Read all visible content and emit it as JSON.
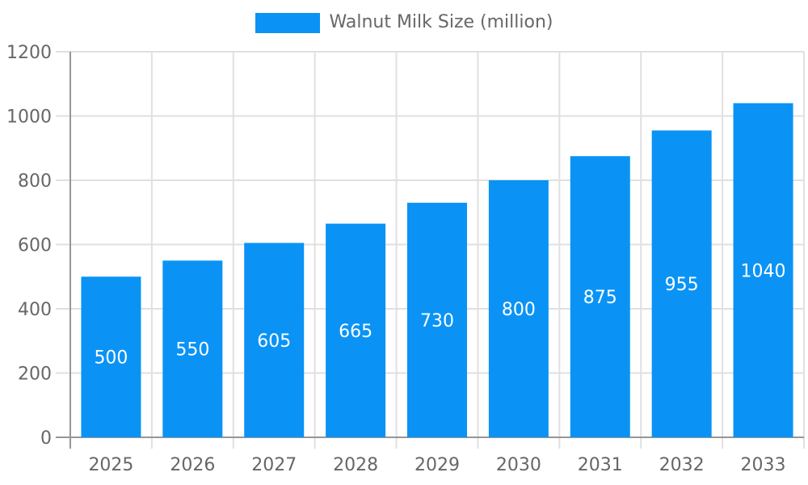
{
  "chart_data": {
    "type": "bar",
    "title": "Walnut Milk Size (million)",
    "categories": [
      "2025",
      "2026",
      "2027",
      "2028",
      "2029",
      "2030",
      "2031",
      "2032",
      "2033"
    ],
    "series": [
      {
        "name": "Walnut Milk Size (million)",
        "values": [
          500,
          550,
          605,
          665,
          730,
          800,
          875,
          955,
          1040
        ]
      }
    ],
    "xlabel": "",
    "ylabel": "",
    "ylim": [
      0,
      1200
    ],
    "yticks": [
      0,
      200,
      400,
      600,
      800,
      1000,
      1200
    ],
    "grid": true,
    "legend_position": "top",
    "value_labels": "inside-bar-centered",
    "colors": {
      "bar": "#0a93f5",
      "value_label": "#ffffff",
      "axis_text": "#676767",
      "axis_line": "#969696",
      "gridline": "#e0e0e0",
      "background": "#ffffff"
    }
  }
}
